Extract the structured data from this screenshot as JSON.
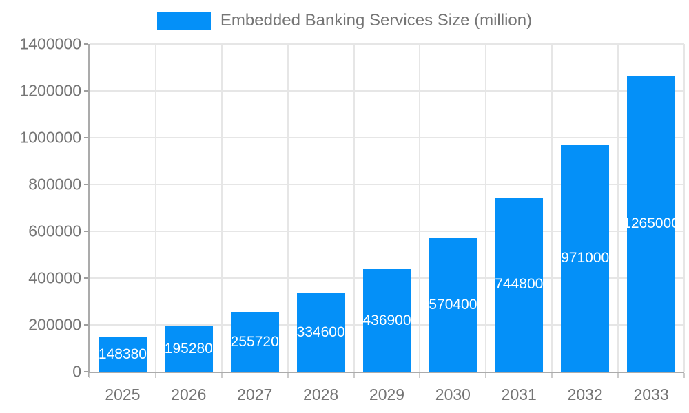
{
  "legend": {
    "label": "Embedded Banking Services Size (million)"
  },
  "chart_data": {
    "type": "bar",
    "title": "Embedded Banking Services Size (million)",
    "categories": [
      "2025",
      "2026",
      "2027",
      "2028",
      "2029",
      "2030",
      "2031",
      "2032",
      "2033"
    ],
    "values": [
      148380,
      195280,
      255720,
      334600,
      436900,
      570400,
      744800,
      971000,
      1265000
    ],
    "value_labels": [
      "148380",
      "195280",
      "255720",
      "334600",
      "436900",
      "570400",
      "744800",
      "971000",
      "1265000"
    ],
    "ytick_labels": [
      "0",
      "200000",
      "400000",
      "600000",
      "800000",
      "1000000",
      "1200000",
      "1400000"
    ],
    "xlabel": "",
    "ylabel": "",
    "ylim": [
      0,
      1400000
    ],
    "ytick_step": 200000,
    "grid": true,
    "legend_position": "top",
    "colors": {
      "bar": "#0490f8",
      "bar_label": "#ffffff",
      "axis_text": "#757575",
      "gridline": "#e6e6e6",
      "axis_line": "#ababab",
      "background": "#ffffff"
    }
  }
}
